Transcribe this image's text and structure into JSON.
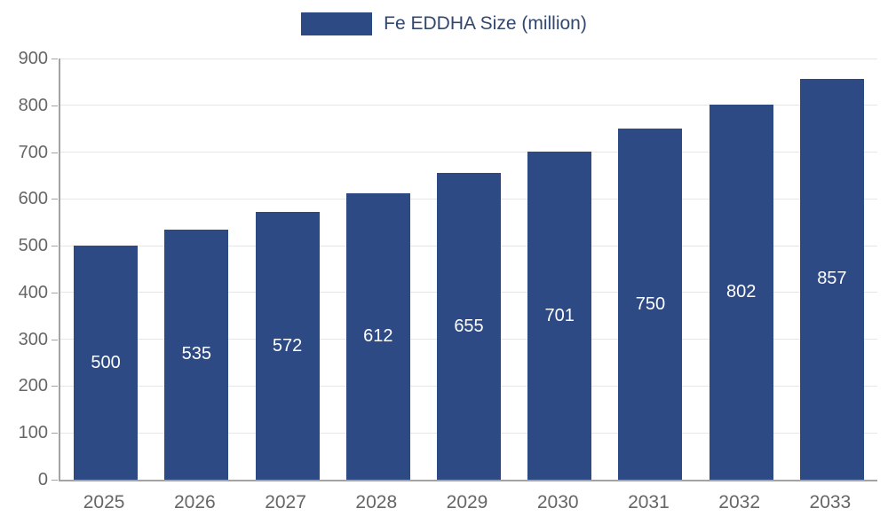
{
  "chart_data": {
    "type": "bar",
    "title": "",
    "legend_label": "Fe EDDHA Size (million)",
    "legend_position": "top",
    "categories": [
      "2025",
      "2026",
      "2027",
      "2028",
      "2029",
      "2030",
      "2031",
      "2032",
      "2033"
    ],
    "values": [
      500,
      535,
      572,
      612,
      655,
      701,
      750,
      802,
      857
    ],
    "xlabel": "",
    "ylabel": "",
    "ylim": [
      0,
      900
    ],
    "yticks": [
      0,
      100,
      200,
      300,
      400,
      500,
      600,
      700,
      800,
      900
    ],
    "grid": true,
    "value_label_position": "inside-center"
  },
  "colors": {
    "bar": "#2e4a85",
    "grid_line": "#e6e6e6",
    "axis_line": "#a3a3a3",
    "tick_text": "#666666",
    "value_label_text": "#ffffff",
    "legend_text": "#32476e",
    "background": "#ffffff"
  }
}
